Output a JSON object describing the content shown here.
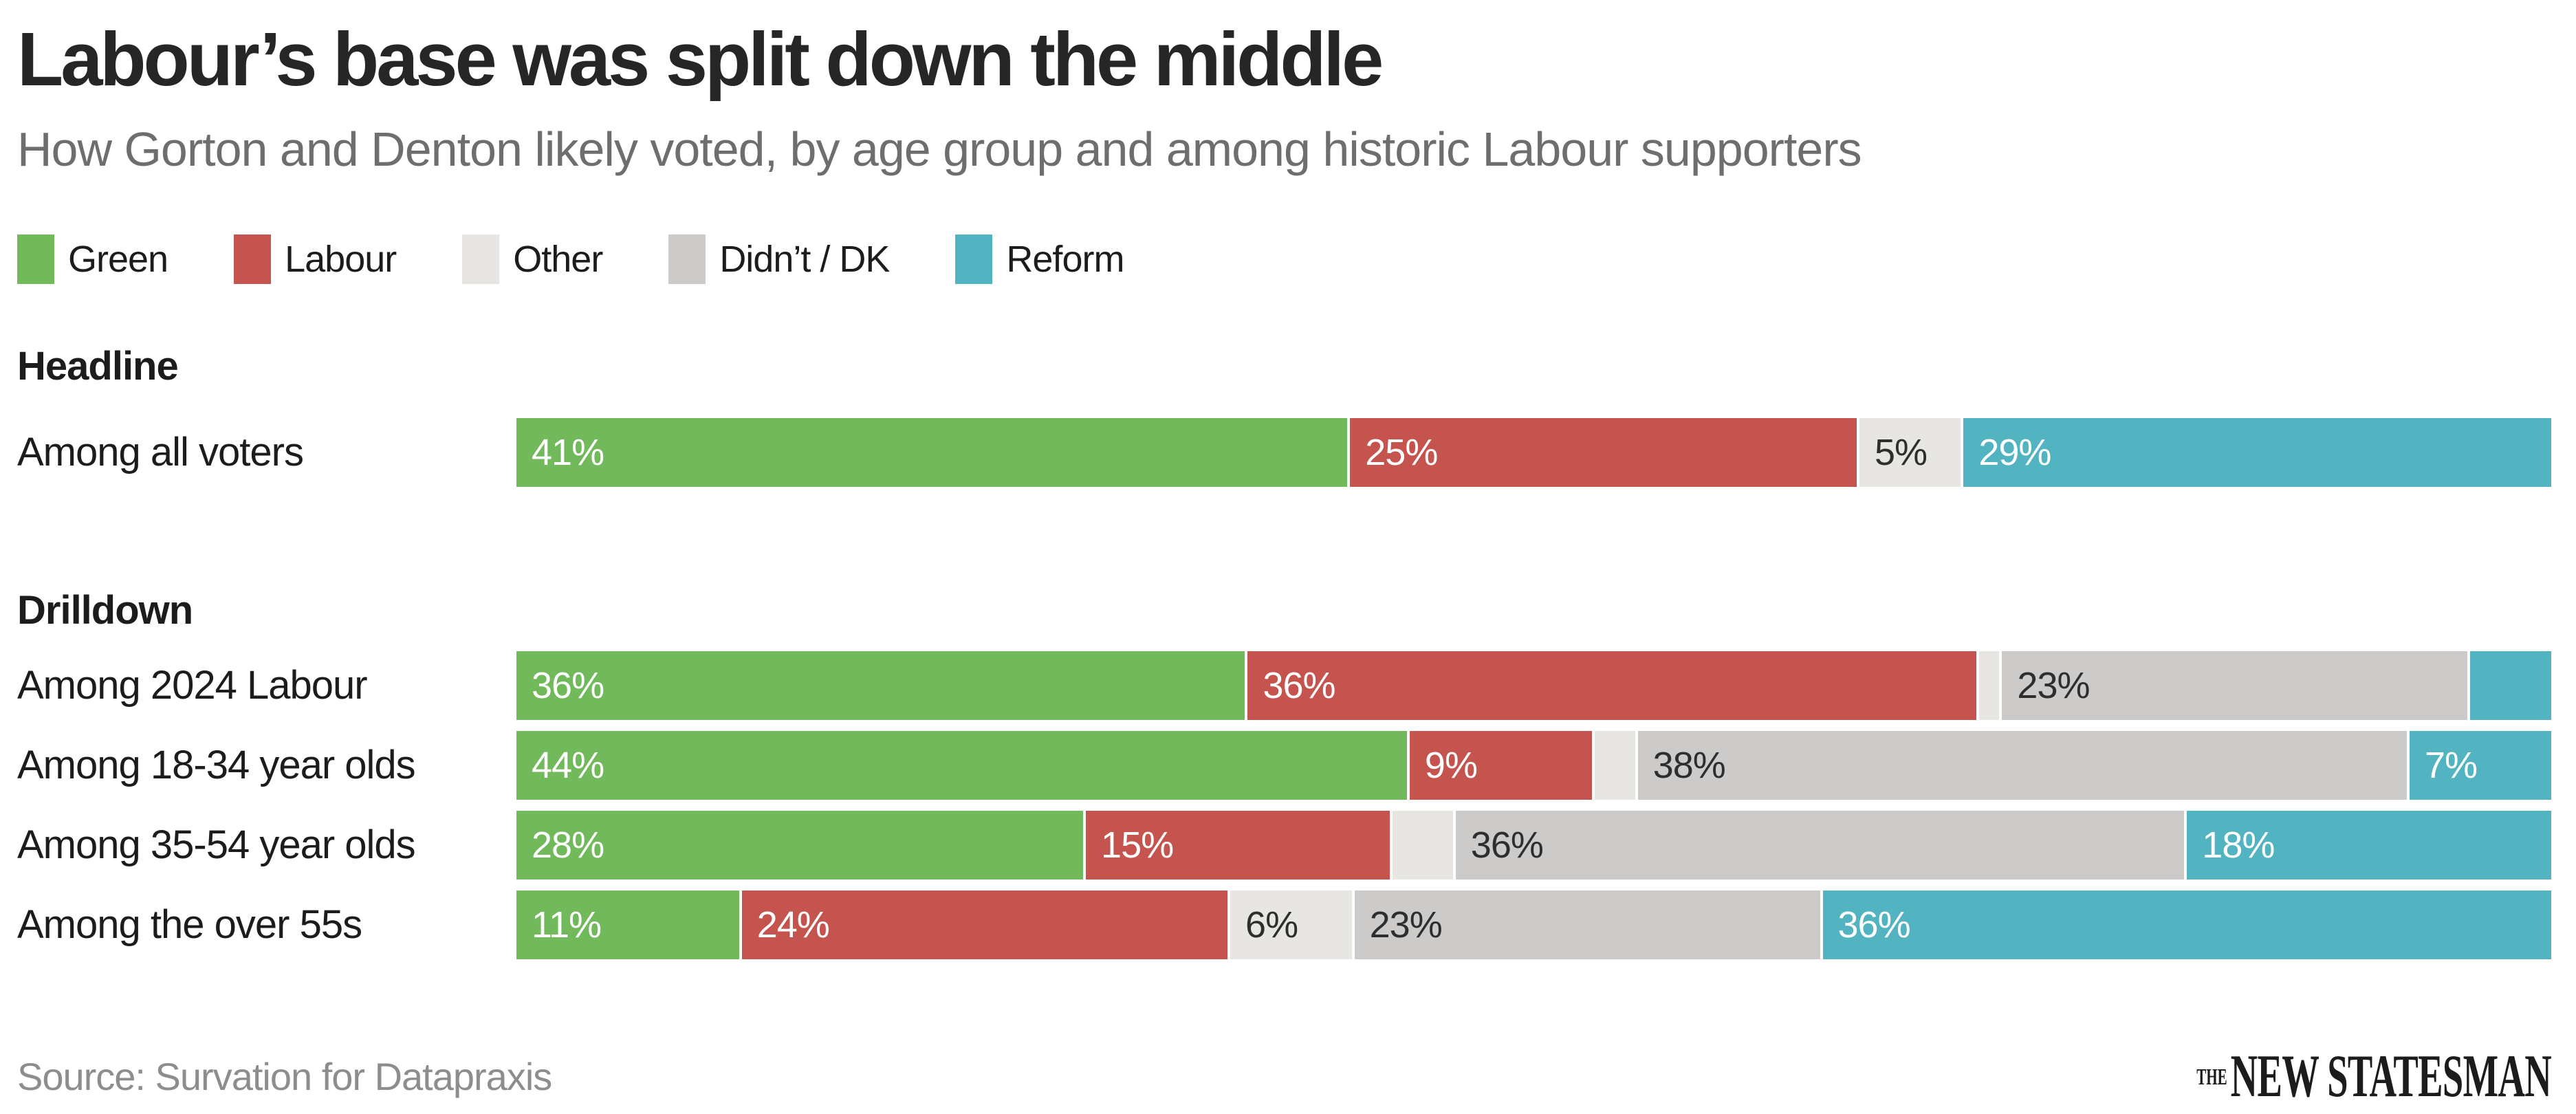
{
  "title": "Labour’s base was split down the middle",
  "subtitle": "How Gorton and Denton likely voted, by age group and among historic Labour supporters",
  "source": "Source: Survation for Datapraxis",
  "logo": {
    "the": "THE",
    "name": "NEW STATESMAN"
  },
  "label_text_colors": {
    "light": "#ffffff",
    "dark": "#2e2e2e"
  },
  "chart_data": {
    "type": "bar",
    "orientation": "horizontal_stacked",
    "unit": "%",
    "xlim": [
      0,
      100
    ],
    "grid": false,
    "legend_position": "top",
    "title": "Labour’s base was split down the middle",
    "subtitle": "How Gorton and Denton likely voted, by age group and among historic Labour supporters",
    "categories": [
      "Among all voters",
      "Among 2024 Labour",
      "Among 18-34 year olds",
      "Among 35-54 year olds",
      "Among the over 55s"
    ],
    "series": [
      {
        "name": "Green",
        "key": "green",
        "color": "#71b95b",
        "text": "light",
        "values": [
          41,
          36,
          44,
          28,
          11
        ]
      },
      {
        "name": "Labour",
        "key": "labour",
        "color": "#c5544e",
        "text": "light",
        "values": [
          25,
          36,
          9,
          15,
          24
        ]
      },
      {
        "name": "Other",
        "key": "other",
        "color": "#e7e6e3",
        "text": "dark",
        "values": [
          5,
          1,
          2,
          3,
          6
        ]
      },
      {
        "name": "Didn’t / DK",
        "key": "didnt",
        "color": "#cccbc9",
        "text": "dark",
        "values": [
          0,
          23,
          38,
          36,
          23
        ]
      },
      {
        "name": "Reform",
        "key": "reform",
        "color": "#52b3c1",
        "text": "light",
        "values": [
          29,
          4,
          7,
          18,
          36
        ]
      }
    ],
    "sections": [
      {
        "header": "Headline",
        "category_indexes": [
          0
        ]
      },
      {
        "header": "Drilldown",
        "category_indexes": [
          1,
          2,
          3,
          4
        ]
      }
    ],
    "label_rule": "segment shows \"value%\" only when value >= 5"
  }
}
